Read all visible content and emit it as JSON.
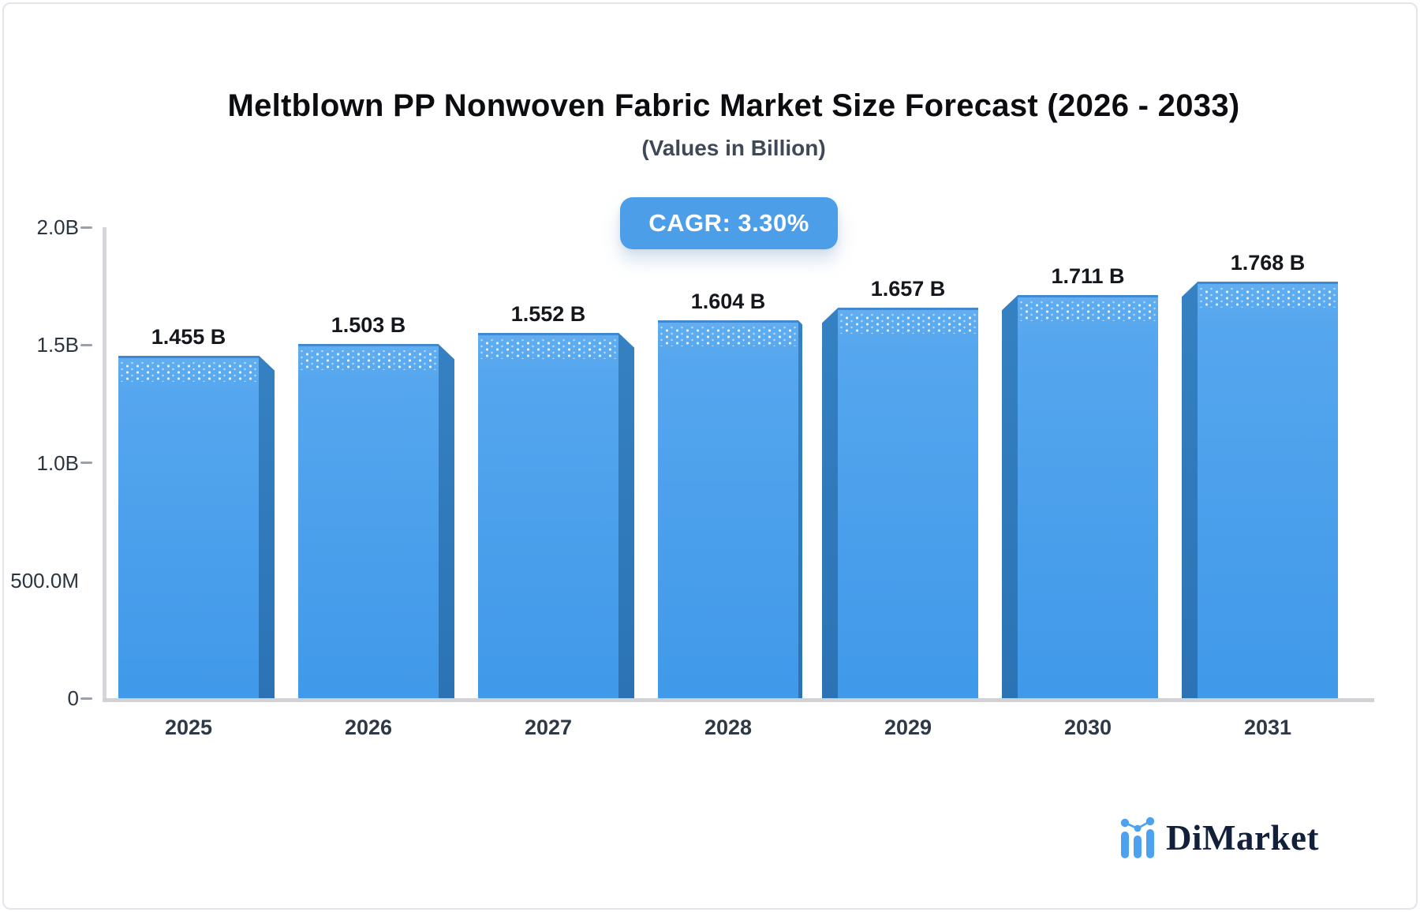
{
  "header": {
    "title": "Meltblown PP Nonwoven Fabric Market Size Forecast (2026 - 2033)",
    "subtitle": "(Values in Billion)"
  },
  "badge": {
    "label": "CAGR: 3.30%",
    "bg": "#4d9ee9",
    "text_color": "#ffffff"
  },
  "chart_data": {
    "type": "bar",
    "title": "Meltblown PP Nonwoven Fabric Market Size Forecast (2026 - 2033)",
    "subtitle": "(Values in Billion)",
    "categories": [
      "2025",
      "2026",
      "2027",
      "2028",
      "2029",
      "2030",
      "2031"
    ],
    "values_billion": [
      1.455,
      1.503,
      1.552,
      1.604,
      1.657,
      1.711,
      1.768
    ],
    "bar_labels": [
      "1.455 B",
      "1.503 B",
      "1.552 B",
      "1.604 B",
      "1.657 B",
      "1.711 B",
      "1.768 B"
    ],
    "cagr_label": "CAGR: 3.30%",
    "xlabel": "",
    "ylabel": "",
    "ylim": [
      0,
      2.0
    ],
    "grid": false,
    "legend": "none",
    "y_axis_ticks": [
      {
        "label": "2.0B",
        "value": 2.0,
        "dash": true
      },
      {
        "label": "1.5B",
        "value": 1.5,
        "dash": true
      },
      {
        "label": "1.0B",
        "value": 1.0,
        "dash": true
      },
      {
        "label": "500.0M",
        "value": 0.5,
        "dash": false
      },
      {
        "label": "0",
        "value": 0.0,
        "dash": true
      }
    ],
    "colors": {
      "bar_face_top": "#61aef1",
      "bar_face_bottom": "#3f97e7",
      "bar_side": "#2e7abc",
      "axis": "#d6d6da",
      "value_label": "#14171c",
      "badge_bg": "#4d9ee9"
    },
    "style_notes": "3D bars with stippled dot band at top; side faces point toward center bar (2028)"
  },
  "footer": {
    "brand": "DiMarket",
    "logo_icon": "mini-bar-line-chart-icon",
    "logo_color": "#4da2f0",
    "brand_color": "#13203a"
  }
}
